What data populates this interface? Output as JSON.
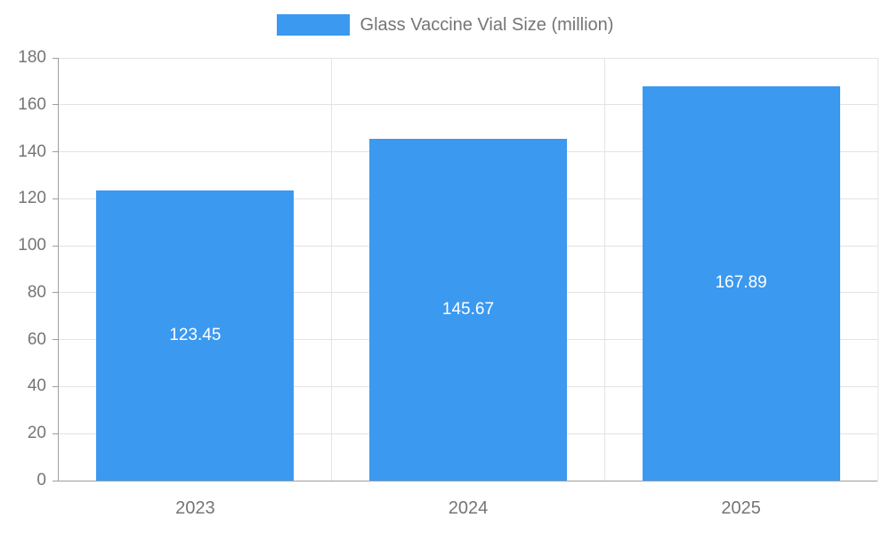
{
  "chart_data": {
    "type": "bar",
    "title": "Glass Vaccine Vial Size (million)",
    "categories": [
      "2023",
      "2024",
      "2025"
    ],
    "values": [
      123.45,
      145.67,
      167.89
    ],
    "value_labels": [
      "123.45",
      "145.67",
      "167.89"
    ],
    "xlabel": "",
    "ylabel": "",
    "ylim": [
      0,
      180
    ],
    "ytick_step": 20,
    "ytick_labels": [
      "0",
      "20",
      "40",
      "60",
      "80",
      "100",
      "120",
      "140",
      "160",
      "180"
    ],
    "grid": "on",
    "legend_position": "top-center",
    "colors": {
      "bar": "#3b99f0",
      "axis_text": "#757575",
      "gridline": "#e3e3e3",
      "axis_line": "#9e9e9e",
      "value_label_text": "#ffffff",
      "background": "#ffffff"
    }
  }
}
